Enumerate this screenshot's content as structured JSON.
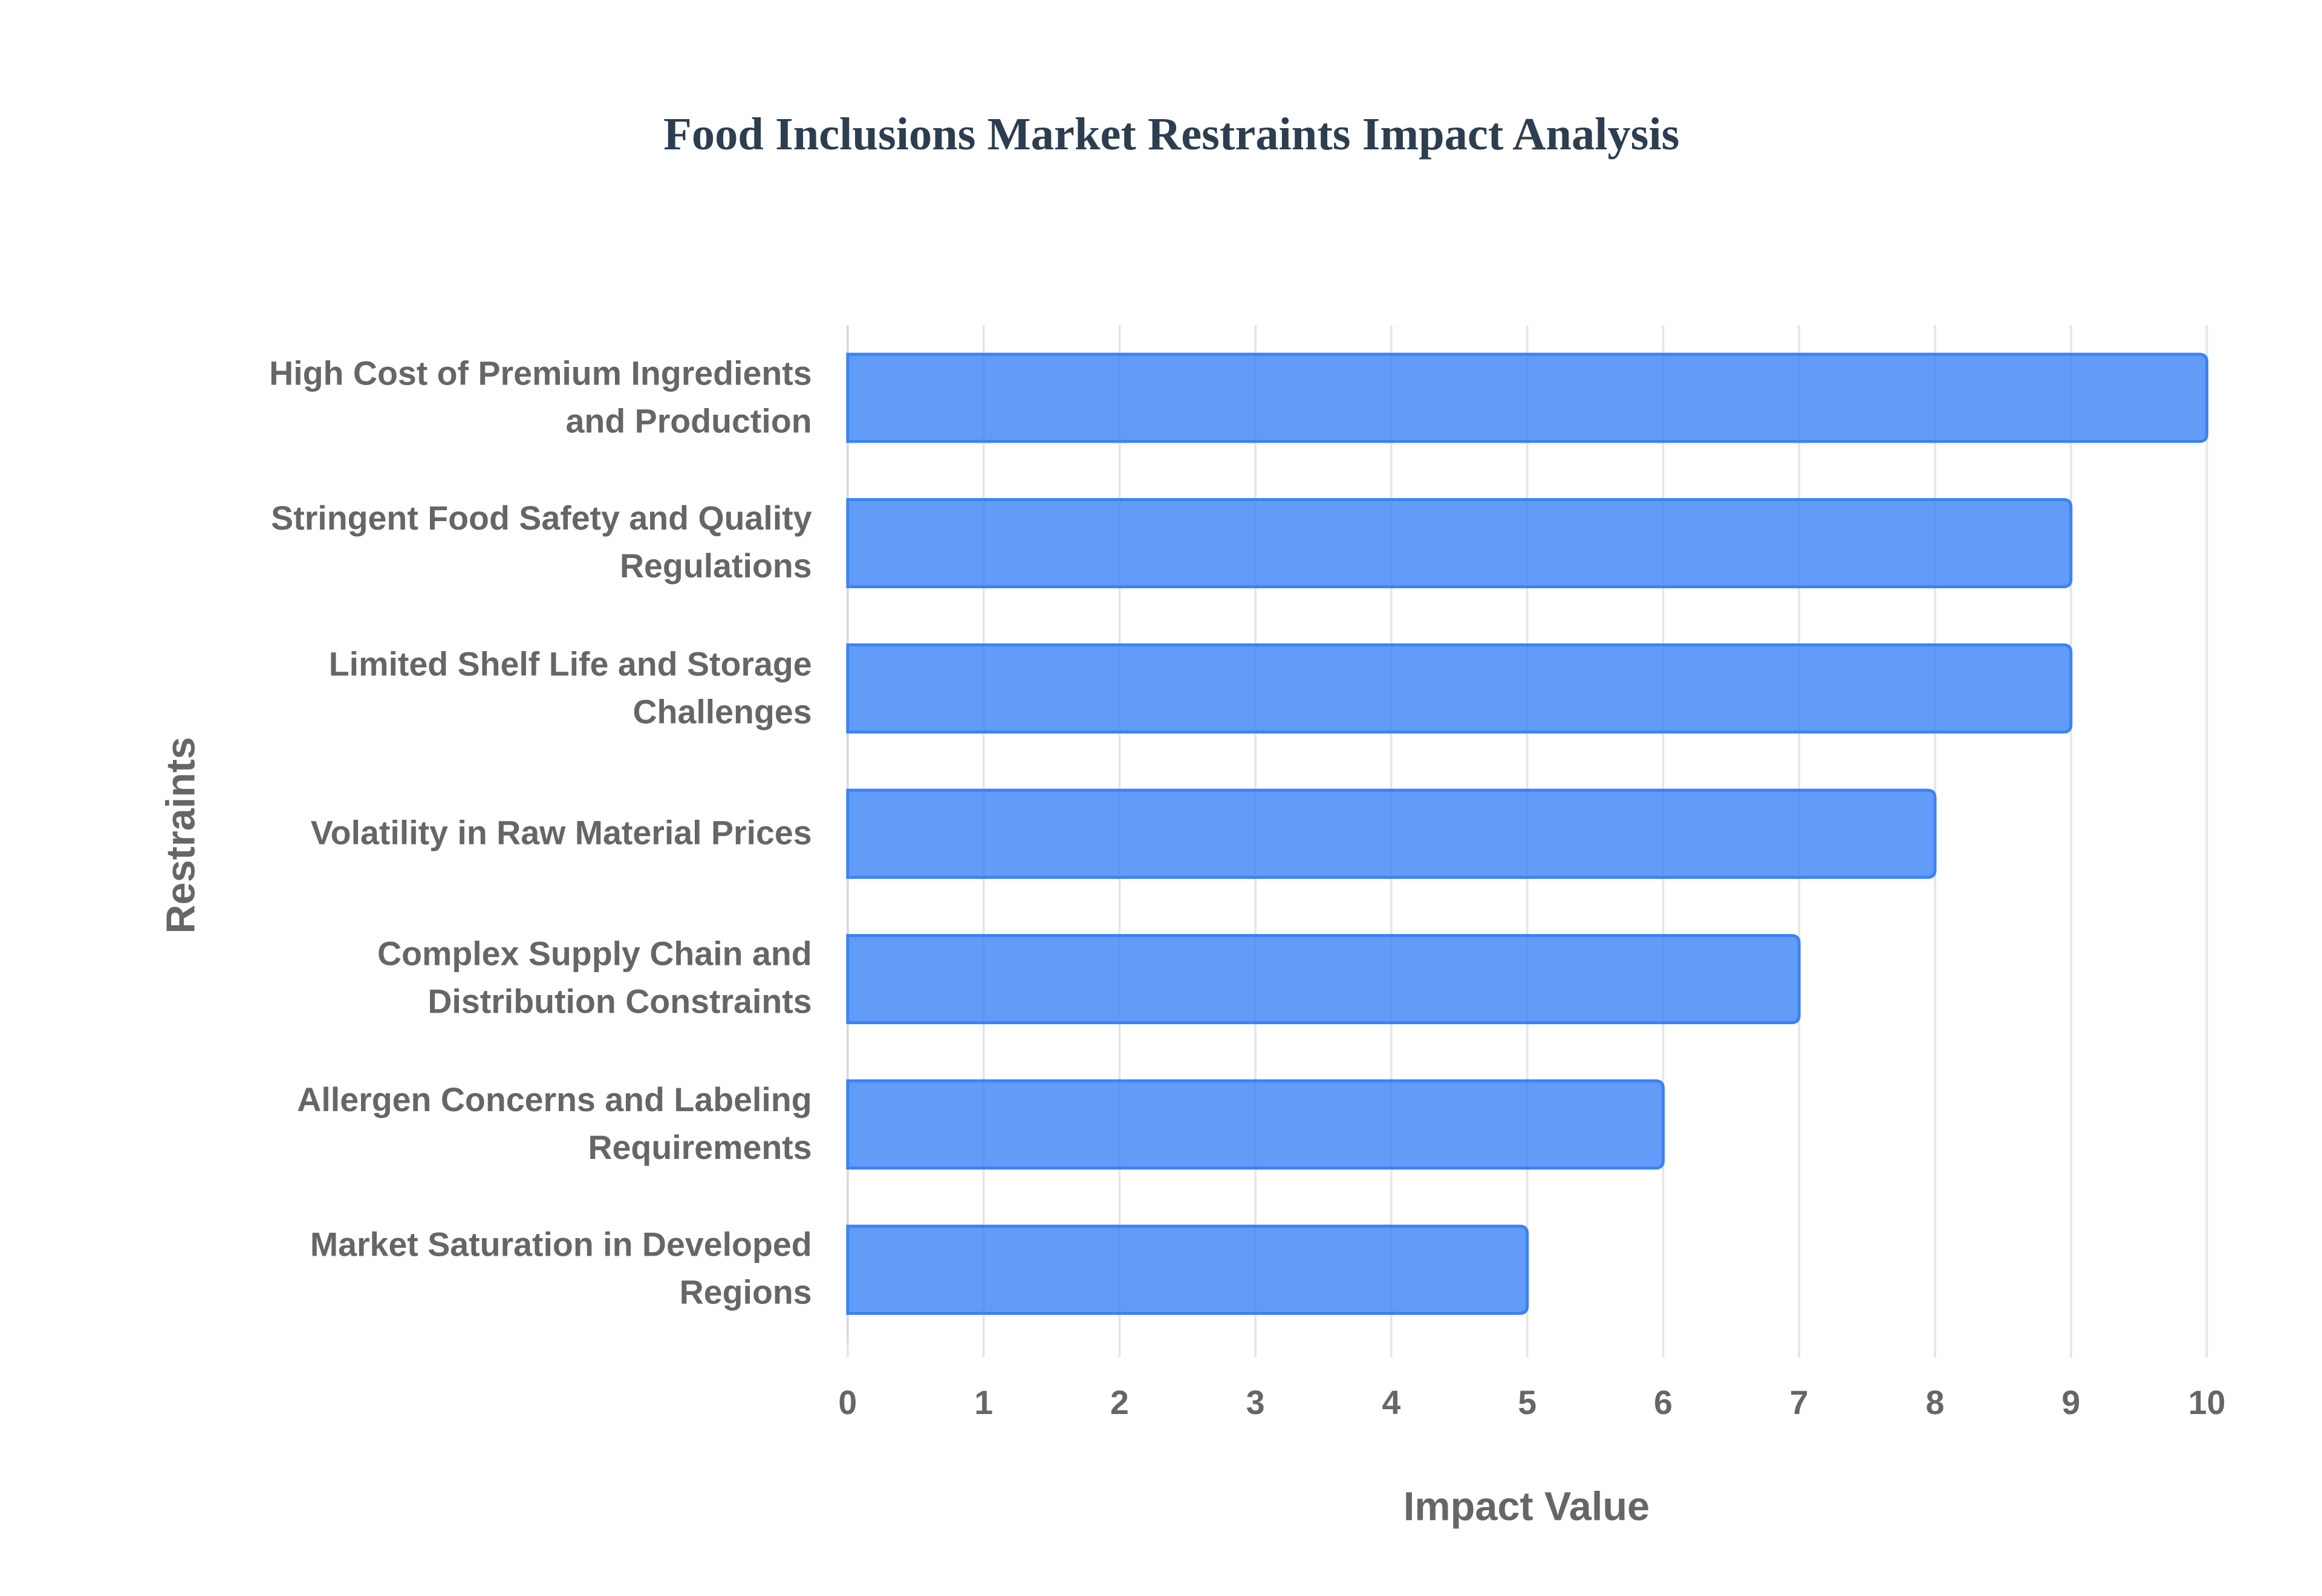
{
  "chart_data": {
    "type": "bar",
    "orientation": "horizontal",
    "title": "Food Inclusions Market Restraints Impact Analysis",
    "x_label": "Impact Value",
    "y_label": "Restraints",
    "categories": [
      "High Cost of Premium Ingredients and Production",
      "Stringent Food Safety and Quality Regulations",
      "Limited Shelf Life and Storage Challenges",
      "Volatility in Raw Material Prices",
      "Complex Supply Chain and Distribution Constraints",
      "Allergen Concerns and Labeling Requirements",
      "Market Saturation in Developed Regions"
    ],
    "values": [
      10,
      9,
      9,
      8,
      7,
      6,
      5
    ],
    "color": "#3b82f6",
    "xlim": [
      0,
      10
    ],
    "xticks": [
      0,
      1,
      2,
      3,
      4,
      5,
      6,
      7,
      8,
      9,
      10
    ],
    "grid": true
  }
}
